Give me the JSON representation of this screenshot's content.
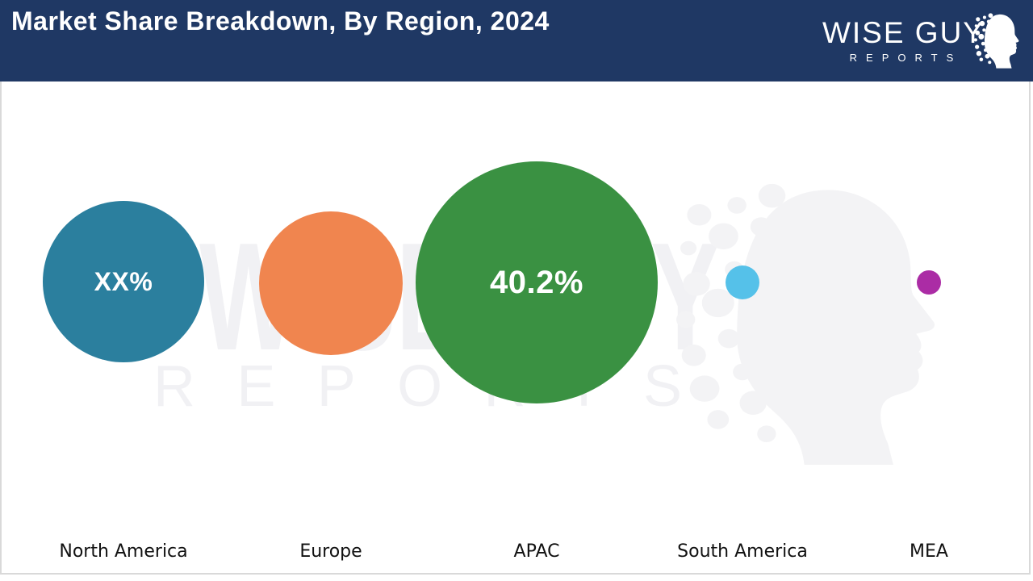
{
  "header": {
    "title": "Market Share Breakdown, By Region, 2024",
    "logo": {
      "line1": "WISE GUY",
      "line2": "REPORTS"
    }
  },
  "watermark": {
    "line1": "WISE GUY",
    "line2": "REPORTS"
  },
  "chart_data": {
    "type": "bubble",
    "title": "Market Share Breakdown, By Region, 2024",
    "categories": [
      "North America",
      "Europe",
      "APAC",
      "South America",
      "MEA"
    ],
    "series": [
      {
        "name": "Market Share",
        "points": [
          {
            "label": "North America",
            "value_label": "XX%",
            "color": "#2B7F9E",
            "cx": 153,
            "cy": 349,
            "r": 100
          },
          {
            "label": "Europe",
            "value_label": "",
            "color": "#F0854F",
            "cx": 410,
            "cy": 351,
            "r": 89
          },
          {
            "label": "APAC",
            "value_label": "40.2%",
            "color": "#3A9142",
            "cx": 665,
            "cy": 350,
            "r": 150
          },
          {
            "label": "South America",
            "value_label": "",
            "color": "#55C1E9",
            "cx": 920,
            "cy": 350,
            "r": 21
          },
          {
            "label": "MEA",
            "value_label": "",
            "color": "#AB2CA5",
            "cx": 1151,
            "cy": 350,
            "r": 15
          }
        ]
      }
    ],
    "legend": "none",
    "axes": "none"
  },
  "colors": {
    "header_bg": "#1F3864",
    "frame_border": "#D9D9D9",
    "watermark": "#F1F1F4"
  }
}
